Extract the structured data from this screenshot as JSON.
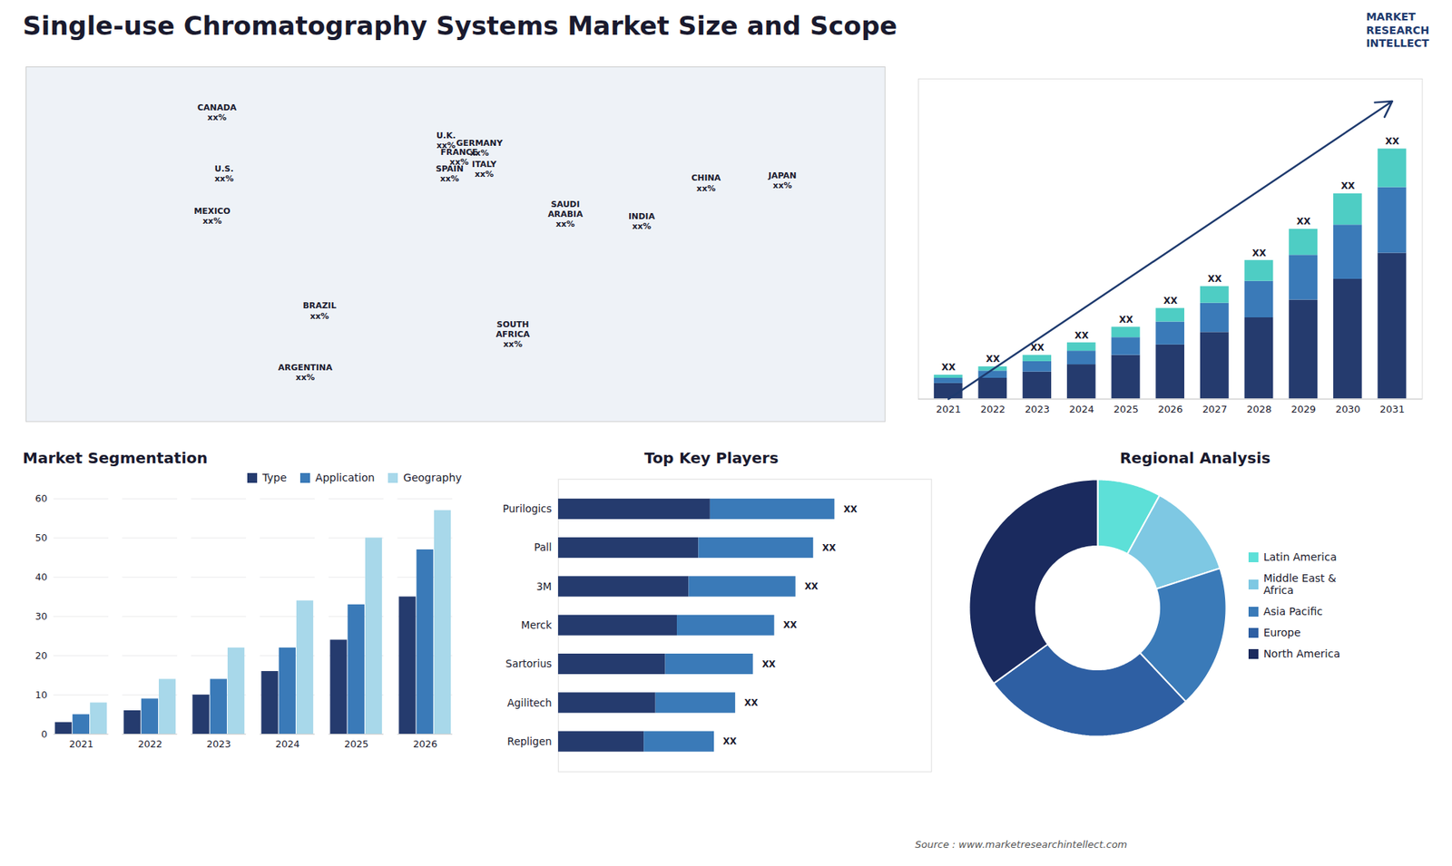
{
  "title": "Single-use Chromatography Systems Market Size and Scope",
  "caption": "Source : www.marketresearchintellect.com",
  "annotations": [
    "MARKET",
    "RESEARCH",
    "INTELLECT"
  ],
  "chart_data": [
    {
      "type": "map",
      "xlim": [
        -180,
        180
      ],
      "ylim": [
        -65,
        85
      ],
      "tick_labels": false,
      "annotations": [
        {
          "text": "CANADA\nxx%",
          "x": -100,
          "y": 66
        },
        {
          "text": "U.S.\nxx%",
          "x": -97,
          "y": 40
        },
        {
          "text": "MEXICO\nxx%",
          "x": -102,
          "y": 22
        },
        {
          "text": "BRAZIL\nxx%",
          "x": -57,
          "y": -18
        },
        {
          "text": "ARGENTINA\nxx%",
          "x": -63,
          "y": -44
        },
        {
          "text": "U.K.\nxx%",
          "x": -4,
          "y": 54
        },
        {
          "text": "FRANCE\nxx%",
          "x": 1.5,
          "y": 47
        },
        {
          "text": "SPAIN\nxx%",
          "x": -2.5,
          "y": 40
        },
        {
          "text": "GERMANY\nxx%",
          "x": 10,
          "y": 51
        },
        {
          "text": "ITALY\nxx%",
          "x": 12,
          "y": 42
        },
        {
          "text": "SAUDI\nARABIA\nxx%",
          "x": 46,
          "y": 23
        },
        {
          "text": "SOUTH\nAFRICA\nxx%",
          "x": 24,
          "y": -28
        },
        {
          "text": "INDIA\nxx%",
          "x": 78,
          "y": 20
        },
        {
          "text": "CHINA\nxx%",
          "x": 105,
          "y": 36
        },
        {
          "text": "JAPAN\nxx%",
          "x": 137,
          "y": 37
        }
      ]
    },
    {
      "type": "bar",
      "stacked": true,
      "categories": [
        "2021",
        "2022",
        "2023",
        "2024",
        "2025",
        "2026",
        "2027",
        "2028",
        "2029",
        "2030",
        "2031"
      ],
      "series": [
        {
          "color": "#253b6e",
          "values": [
            1.5,
            2.0,
            2.6,
            3.3,
            4.2,
            5.2,
            6.4,
            7.8,
            9.5,
            11.5,
            14.0
          ]
        },
        {
          "color": "#3a7ab8",
          "values": [
            0.5,
            0.7,
            1.0,
            1.3,
            1.7,
            2.2,
            2.8,
            3.5,
            4.3,
            5.2,
            6.3
          ]
        },
        {
          "color": "#4ecdc4",
          "values": [
            0.3,
            0.4,
            0.6,
            0.8,
            1.0,
            1.3,
            1.6,
            2.0,
            2.5,
            3.0,
            3.7
          ]
        }
      ],
      "ylim": [
        0,
        30.72
      ],
      "tick_labels": "x",
      "annotations": [
        {
          "text": "XX",
          "x": "2021"
        },
        {
          "text": "XX",
          "x": "2022"
        },
        {
          "text": "XX",
          "x": "2023"
        },
        {
          "text": "XX",
          "x": "2024"
        },
        {
          "text": "XX",
          "x": "2025"
        },
        {
          "text": "XX",
          "x": "2026"
        },
        {
          "text": "XX",
          "x": "2027"
        },
        {
          "text": "XX",
          "x": "2028"
        },
        {
          "text": "XX",
          "x": "2029"
        },
        {
          "text": "XX",
          "x": "2030"
        },
        {
          "text": "XX",
          "x": "2031"
        },
        {
          "type": "arrow",
          "color": "#1e3a6e"
        }
      ]
    },
    {
      "type": "bar",
      "title": "Market Segmentation",
      "categories": [
        "2021",
        "2022",
        "2023",
        "2024",
        "2025",
        "2026"
      ],
      "series": [
        {
          "name": "Type",
          "color": "#253b6e",
          "values": [
            3,
            6,
            10,
            16,
            24,
            35
          ]
        },
        {
          "name": "Application",
          "color": "#3a7ab8",
          "values": [
            5,
            9,
            14,
            22,
            33,
            47
          ]
        },
        {
          "name": "Geography",
          "color": "#a8d8ea",
          "values": [
            8,
            14,
            22,
            34,
            50,
            57
          ]
        }
      ],
      "ylim": [
        0,
        60
      ],
      "yticks": [
        0,
        10,
        20,
        30,
        40,
        50,
        60
      ],
      "grid": true,
      "legend": "top"
    },
    {
      "type": "bar",
      "title": "Top Key Players",
      "orientation": "horizontal",
      "stacked": true,
      "categories": [
        "Purilogics",
        "Pall",
        "3M",
        "Merck",
        "Sartorius",
        "Agilitech",
        "Repligen"
      ],
      "series": [
        {
          "color": "#253b6e",
          "values": [
            4.29,
            3.96,
            3.685,
            3.355,
            3.025,
            2.75,
            2.42
          ]
        },
        {
          "color": "#3a7ab8",
          "values": [
            3.51,
            3.24,
            3.015,
            2.745,
            2.475,
            2.25,
            1.98
          ]
        }
      ],
      "xlim": [
        0,
        10.53
      ],
      "tick_labels": "y",
      "annotations": [
        {
          "text": "XX",
          "y": "Purilogics"
        },
        {
          "text": "XX",
          "y": "Pall"
        },
        {
          "text": "XX",
          "y": "3M"
        },
        {
          "text": "XX",
          "y": "Merck"
        },
        {
          "text": "XX",
          "y": "Sartorius"
        },
        {
          "text": "XX",
          "y": "Agilitech"
        },
        {
          "text": "XX",
          "y": "Repligen"
        }
      ]
    },
    {
      "type": "donut",
      "title": "Regional Analysis",
      "categories": [
        "Latin America",
        "Middle East &\nAfrica",
        "Asia Pacific",
        "Europe",
        "North America"
      ],
      "values": [
        8,
        12,
        18,
        27,
        35
      ],
      "colors": [
        "#5de0d8",
        "#7ec8e3",
        "#3a7ab8",
        "#2e5fa3",
        "#1a2a5e"
      ],
      "legend": "right"
    }
  ]
}
